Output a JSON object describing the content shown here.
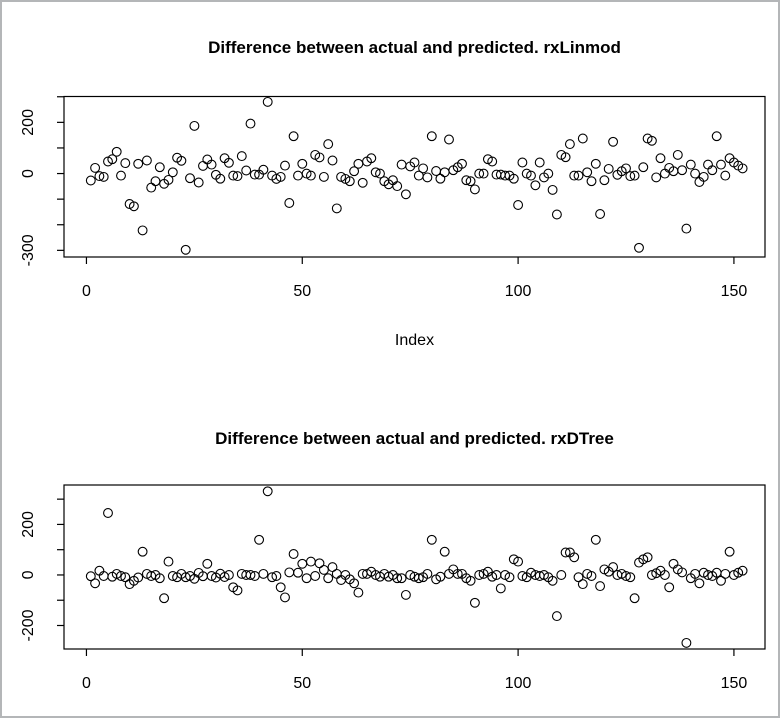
{
  "frame": {
    "border_color": "#b4b6b8",
    "background": "#ffffff"
  },
  "text_color": "#000000",
  "point_color": "#000000",
  "chart_data": [
    {
      "type": "scatter",
      "title": "Difference between actual and predicted. rxLinmod",
      "xlabel": "Index",
      "ylabel": "",
      "marker": "open-circle",
      "grid": false,
      "legend": "none",
      "x_start": 1,
      "xlim": [
        -5.2,
        157.2
      ],
      "ylim": [
        -326,
        301
      ],
      "xticks": [
        0,
        50,
        100,
        150
      ],
      "xtick_labels": [
        "0",
        "50",
        "100",
        "150"
      ],
      "yticks": [
        300,
        200,
        100,
        0,
        -100,
        -200,
        -300
      ],
      "ytick_labels": [
        "",
        "200",
        "",
        "0",
        "",
        "",
        "-300"
      ],
      "values": [
        -27,
        22,
        -10,
        -13,
        47,
        56,
        85,
        -8,
        41,
        -119,
        -128,
        38,
        -222,
        51,
        -55,
        -30,
        25,
        -40,
        -25,
        5,
        62,
        50,
        -298,
        -18,
        186,
        -35,
        30,
        55,
        35,
        -5,
        -20,
        60,
        42,
        -8,
        -10,
        68,
        12,
        195,
        -4,
        -4,
        15,
        280,
        -8,
        -21,
        -13,
        31,
        -115,
        146,
        -8,
        38,
        0,
        -8,
        73,
        63,
        -13,
        115,
        51,
        -136,
        -13,
        -21,
        -30,
        9,
        38,
        -36,
        47,
        60,
        5,
        0,
        -30,
        -42,
        -26,
        -49,
        35,
        -81,
        28,
        43,
        -8,
        20,
        -15,
        146,
        10,
        -20,
        5,
        133,
        13,
        25,
        38,
        -26,
        -30,
        -62,
        0,
        0,
        56,
        47,
        -4,
        -4,
        -8,
        -8,
        -20,
        -123,
        43,
        0,
        -8,
        -46,
        43,
        -15,
        0,
        -64,
        -160,
        73,
        64,
        115,
        -8,
        -8,
        137,
        5,
        -30,
        38,
        -158,
        -26,
        18,
        124,
        -5,
        9,
        20,
        -10,
        -8,
        -290,
        25,
        137,
        128,
        -15,
        60,
        0,
        22,
        9,
        73,
        13,
        -215,
        35,
        0,
        -33,
        -13,
        35,
        13,
        146,
        35,
        -8,
        60,
        43,
        31,
        20
      ]
    },
    {
      "type": "scatter",
      "title": "Difference between actual and predicted. rxDTree",
      "xlabel": "",
      "ylabel": "",
      "marker": "open-circle",
      "grid": false,
      "legend": "none",
      "x_start": 1,
      "xlim": [
        -5.2,
        157.2
      ],
      "ylim": [
        -293,
        356
      ],
      "xticks": [
        0,
        50,
        100,
        150
      ],
      "xtick_labels": [
        "0",
        "50",
        "100",
        "150"
      ],
      "yticks": [
        300,
        200,
        100,
        0,
        -100,
        -200
      ],
      "ytick_labels": [
        "",
        "200",
        "",
        "0",
        "",
        "-200"
      ],
      "values": [
        -5,
        -33,
        17,
        -4,
        245,
        -7,
        4,
        -4,
        -9,
        -36,
        -23,
        -10,
        92,
        4,
        -4,
        0,
        -13,
        -92,
        53,
        -4,
        -9,
        4,
        -9,
        -4,
        -15,
        8,
        -5,
        44,
        -4,
        -10,
        5,
        -8,
        0,
        -49,
        -61,
        4,
        0,
        0,
        -4,
        139,
        4,
        331,
        -9,
        -4,
        -49,
        -89,
        10,
        83,
        9,
        44,
        -13,
        53,
        -4,
        46,
        20,
        -13,
        31,
        4,
        -20,
        0,
        -17,
        -33,
        -70,
        4,
        4,
        13,
        0,
        -7,
        4,
        -7,
        0,
        -13,
        -13,
        -79,
        0,
        -7,
        -13,
        -9,
        4,
        139,
        -17,
        -7,
        92,
        4,
        22,
        4,
        4,
        -13,
        -23,
        -110,
        0,
        4,
        13,
        -7,
        0,
        -53,
        0,
        -9,
        62,
        53,
        -4,
        -9,
        9,
        0,
        -4,
        0,
        -9,
        -23,
        -163,
        0,
        89,
        89,
        70,
        -9,
        -36,
        4,
        -4,
        139,
        -44,
        22,
        13,
        31,
        0,
        4,
        -4,
        -9,
        -92,
        49,
        62,
        70,
        0,
        7,
        17,
        0,
        -49,
        44,
        22,
        10,
        -269,
        -13,
        4,
        -33,
        9,
        0,
        -4,
        9,
        -23,
        4,
        92,
        0,
        9,
        17
      ]
    }
  ]
}
